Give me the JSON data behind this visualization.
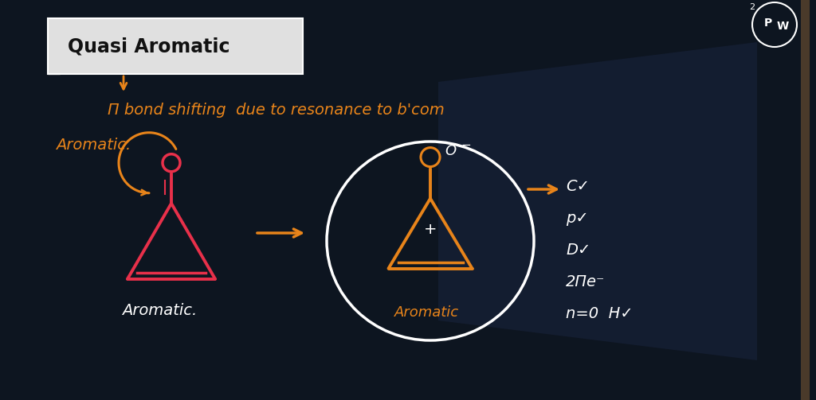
{
  "bg_color": "#0d1520",
  "title_box_color": "#d8d8d8",
  "title_text": "Quasi Aromatic",
  "title_text_color": "#111111",
  "orange_color": "#E8841A",
  "red_color": "#E8304A",
  "white_color": "#FFFFFF",
  "line1": "Π bond shifting  due to resonance to b'com",
  "line2": "Aromatic.",
  "left_label": "Aromatic.",
  "right_label": "Aromatic",
  "right_list": [
    "C✓",
    "p✓",
    "D✓",
    "2Πe⁻",
    "n=0  H✓"
  ],
  "figsize": [
    10.24,
    5.03
  ],
  "dpi": 100
}
